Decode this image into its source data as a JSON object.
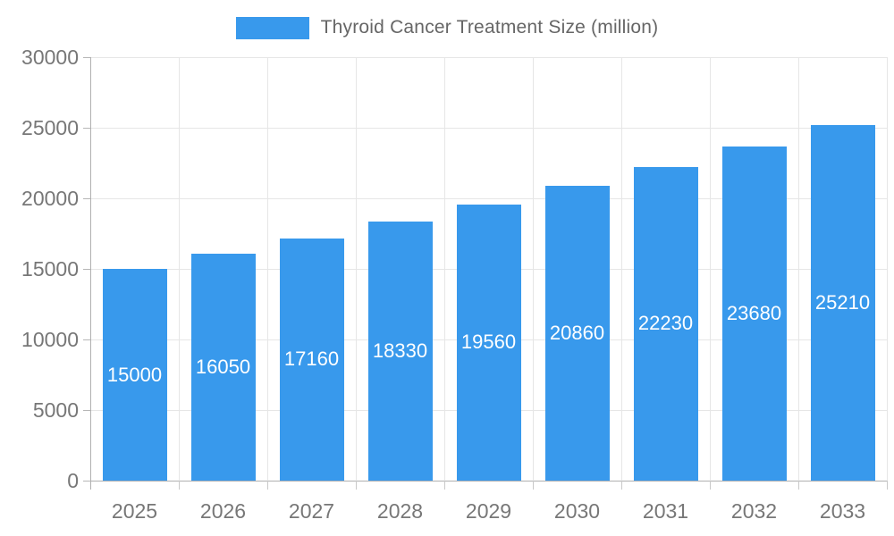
{
  "legend": {
    "label": "Thyroid Cancer Treatment Size (million)",
    "swatch_color": "#3899ec",
    "position": "top"
  },
  "chart_data": {
    "type": "bar",
    "title": "Thyroid Cancer Treatment Size (million)",
    "categories": [
      "2025",
      "2026",
      "2027",
      "2028",
      "2029",
      "2030",
      "2031",
      "2032",
      "2033"
    ],
    "values": [
      15000,
      16050,
      17160,
      18330,
      19560,
      20860,
      22230,
      23680,
      25210
    ],
    "series": [
      {
        "name": "Thyroid Cancer Treatment Size (million)",
        "values": [
          15000,
          16050,
          17160,
          18330,
          19560,
          20860,
          22230,
          23680,
          25210
        ]
      }
    ],
    "value_labels": [
      "15000",
      "16050",
      "17160",
      "18330",
      "19560",
      "20860",
      "22230",
      "23680",
      "25210"
    ],
    "xlabel": "",
    "ylabel": "",
    "ylim": [
      0,
      30000
    ],
    "yticks": [
      0,
      5000,
      10000,
      15000,
      20000,
      25000,
      30000
    ],
    "grid": true,
    "legend_position": "top",
    "colors": {
      "bar": "#3899ec",
      "bar_value_text": "#ffffff",
      "axis_line": "#b0b0b0",
      "gridline": "#e6e6e6",
      "tick_text": "#777777",
      "legend_text": "#666666",
      "background": "#ffffff"
    }
  }
}
